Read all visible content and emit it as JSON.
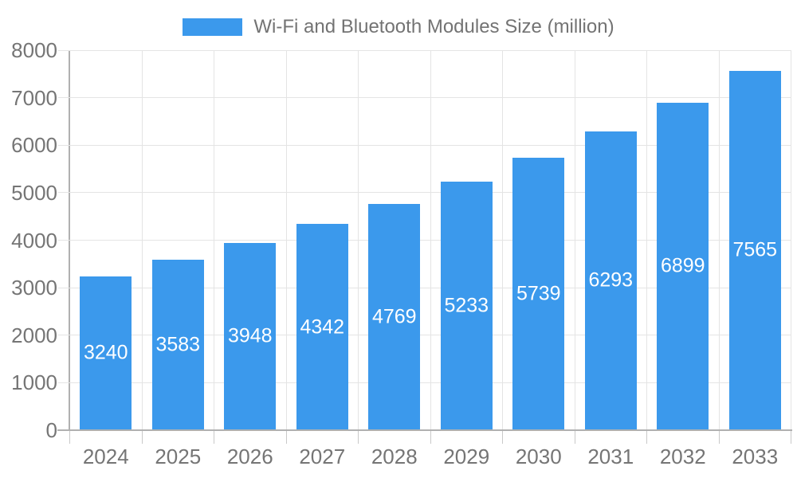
{
  "chart_data": {
    "type": "bar",
    "title": "Wi-Fi and Bluetooth Modules Size (million)",
    "legend": {
      "position": "top-center",
      "entries": [
        "Wi-Fi and Bluetooth Modules Size (million)"
      ]
    },
    "categories": [
      "2024",
      "2025",
      "2026",
      "2027",
      "2028",
      "2029",
      "2030",
      "2031",
      "2032",
      "2033"
    ],
    "series": [
      {
        "name": "Wi-Fi and Bluetooth Modules Size (million)",
        "values": [
          3240,
          3583,
          3948,
          4342,
          4769,
          5233,
          5739,
          6293,
          6899,
          7565
        ]
      }
    ],
    "xlabel": "",
    "ylabel": "",
    "ylim": [
      0,
      8000
    ],
    "y_ticks": [
      0,
      1000,
      2000,
      3000,
      4000,
      5000,
      6000,
      7000,
      8000
    ],
    "grid": true,
    "data_labels": "inside bars, vertically centered, white"
  },
  "colors": {
    "bar": "#3b99ec",
    "grid": "#e4e4e4",
    "axis": "#b0b0b0",
    "tick_y": "#d6d6d6",
    "tick_x": "#c9c9c9",
    "axis_label": "#757575",
    "legend_label": "#737373",
    "bar_label": "#ffffff",
    "background": "#ffffff"
  }
}
